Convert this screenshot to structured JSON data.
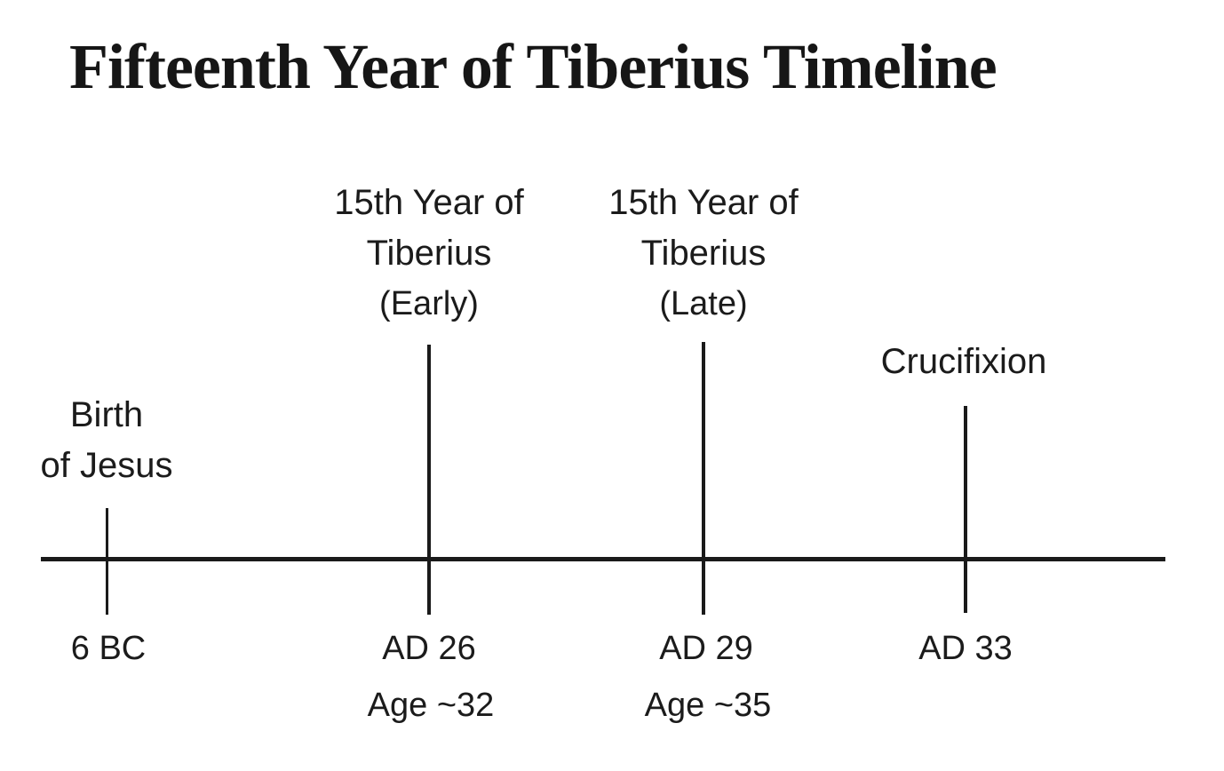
{
  "colors": {
    "ink": "#1b1b1b",
    "background": "#ffffff"
  },
  "title": "Fifteenth Year of Tiberius Timeline",
  "timeline": {
    "events": {
      "birth": {
        "name_line1": "Birth",
        "name_line2": "of Jesus",
        "date": "6 BC"
      },
      "tiberius_early": {
        "name_line1": "15th Year of",
        "name_line2": "Tiberius",
        "qualifier": "(Early)",
        "date": "AD 26",
        "age": "Age ~32"
      },
      "tiberius_late": {
        "name_line1": "15th Year of",
        "name_line2": "Tiberius",
        "qualifier": "(Late)",
        "date": "AD 29",
        "age": "Age ~35"
      },
      "crucifixion": {
        "name": "Crucifixion",
        "date": "AD 33"
      }
    }
  }
}
